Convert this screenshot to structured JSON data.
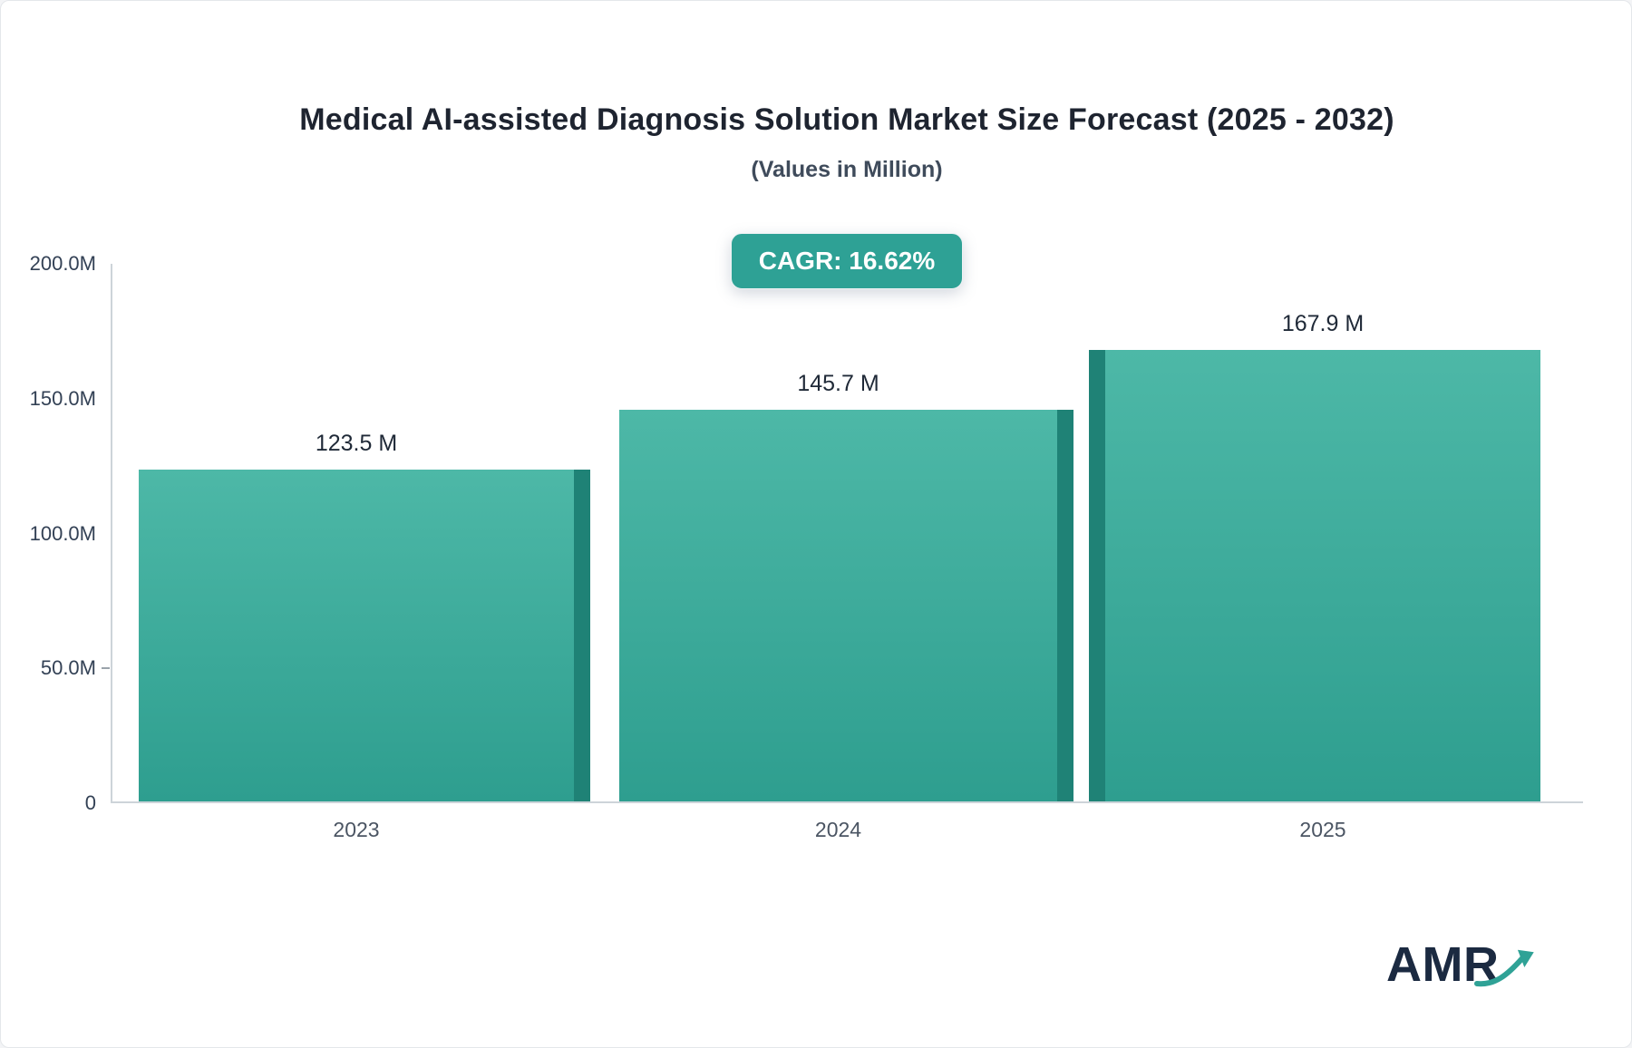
{
  "header": {
    "title": "Medical AI-assisted Diagnosis Solution Market Size Forecast (2025 - 2032)",
    "subtitle": "(Values in Million)"
  },
  "badge": {
    "label": "CAGR: 16.62%"
  },
  "logo": {
    "text": "AMR",
    "arrow_icon": "growth-arrow-icon",
    "arrow_color": "#2fa296"
  },
  "chart_data": {
    "type": "bar",
    "title": "Medical AI-assisted Diagnosis Solution Market Size Forecast (2025 - 2032)",
    "subtitle": "(Values in Million)",
    "categories": [
      "2023",
      "2024",
      "2025"
    ],
    "values": [
      123.5,
      145.7,
      167.9
    ],
    "value_labels": [
      "123.5 M",
      "145.7 M",
      "167.9 M"
    ],
    "cagr_percent": 16.62,
    "xlabel": "",
    "ylabel": "",
    "ylim": [
      0,
      200
    ],
    "grid": "off",
    "legend": "none",
    "yticks": [
      {
        "label": "200.0M",
        "value": 200
      },
      {
        "label": "150.0M",
        "value": 150
      },
      {
        "label": "100.0M",
        "value": 100
      },
      {
        "label": "50.0M",
        "value": 50
      },
      {
        "label": "0",
        "value": 0
      }
    ],
    "colors": {
      "bar_top": "#4db8a7",
      "bar_bottom": "#2e9e8f",
      "bar_side_shadow": "#1f8276",
      "accent": "#2ea195"
    }
  }
}
